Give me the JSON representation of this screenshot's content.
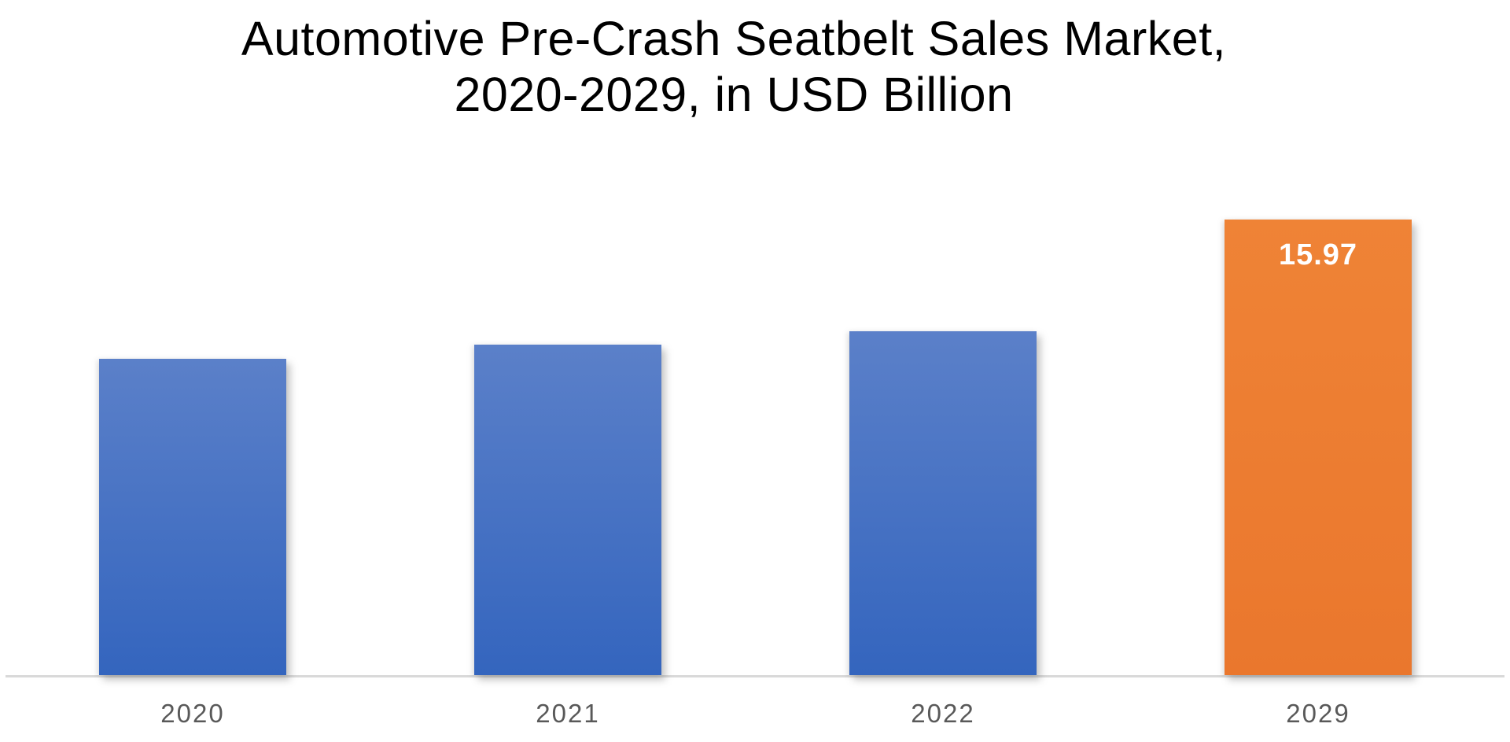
{
  "chart_data": {
    "type": "bar",
    "title": "Automotive Pre-Crash Seatbelt Sales Market, 2020-2029, in USD Billion",
    "title_lines": [
      "Automotive Pre-Crash Seatbelt Sales Market,",
      "2020-2029, in USD Billion"
    ],
    "categories": [
      "2020",
      "2021",
      "2022",
      "2029"
    ],
    "values": [
      11.1,
      11.6,
      12.05,
      15.97
    ],
    "data_labels": [
      "",
      "",
      "",
      "15.97"
    ],
    "xlabel": "",
    "ylabel": "",
    "ylim": [
      0,
      16.5
    ],
    "grid": false,
    "legend": false,
    "bar_series_colors": [
      "blue",
      "blue",
      "blue",
      "orange"
    ],
    "colors": {
      "bar_blue_top": "#5B80C9",
      "bar_blue_bottom": "#3465BE",
      "bar_orange_top": "#EF8336",
      "bar_orange_bottom": "#EA772D",
      "axis_line": "#D9D9D9",
      "tick_label": "#595959",
      "data_label": "#FFFFFF",
      "title": "#000000",
      "background": "#FFFFFF"
    }
  }
}
